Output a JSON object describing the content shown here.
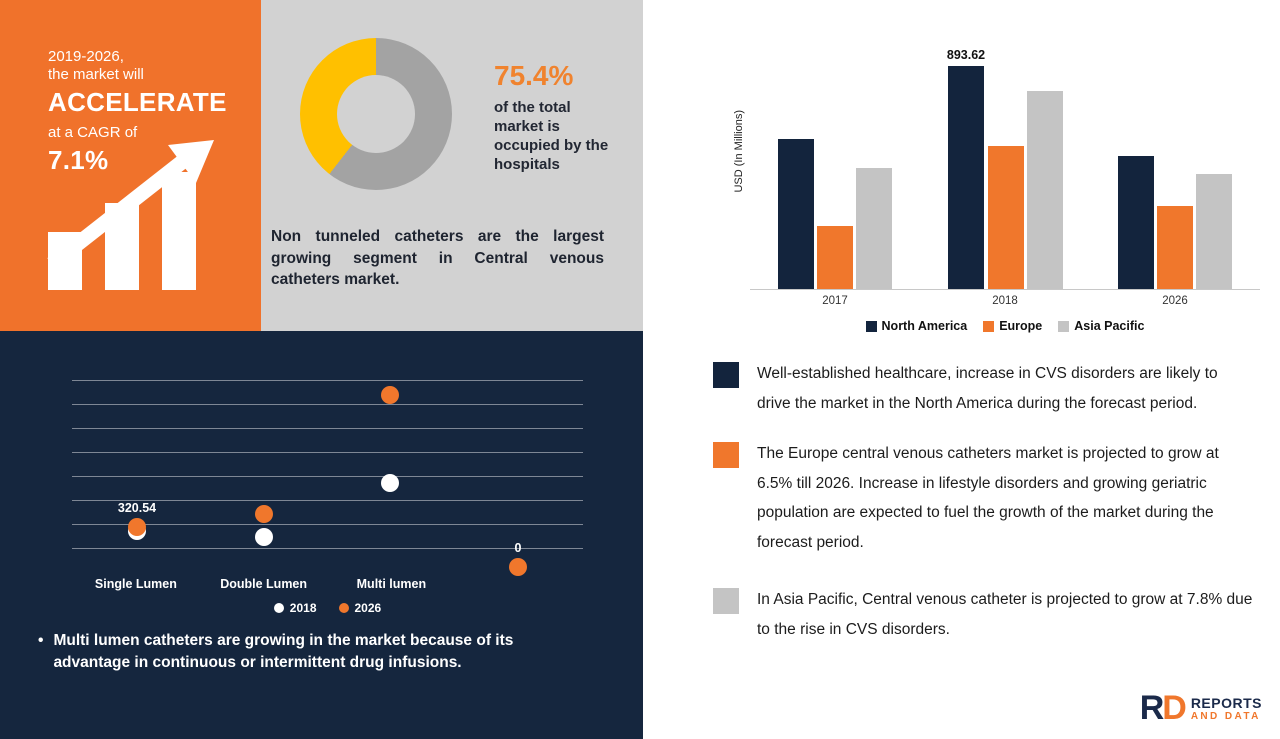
{
  "accelerate_panel": {
    "period": "2019-2026,",
    "line2": "the market will",
    "accelerate": "ACCELERATE",
    "line4": "at a CAGR of",
    "cagr": "7.1%"
  },
  "hospitals_panel": {
    "stat": "75.4%",
    "caption": "of the total market is occupied by the hospitals",
    "note": "Non tunneled catheters are the largest growing segment in Central venous catheters market."
  },
  "lumen_panel": {
    "note": "Multi lumen catheters are growing in the market because of its advantage in continuous or intermittent drug infusions."
  },
  "insights": [
    {
      "color": "#13243D",
      "text": "Well-established healthcare, increase in CVS disorders are likely to drive the market in the North America  during the forecast period."
    },
    {
      "color": "#F0772C",
      "text": "The Europe central venous catheters market is projected to grow at 6.5% till 2026. Increase in lifestyle disorders and growing geriatric population are expected to fuel the growth of the market during the forecast period."
    },
    {
      "color": "#C4C4C4",
      "text": "In Asia Pacific, Central venous catheter is projected to grow at 7.8% due to the rise in CVS disorders."
    }
  ],
  "logo": {
    "mark_r": "R",
    "mark_d": "D",
    "line1": "REPORTS",
    "line2": "AND DATA"
  },
  "chart_data": [
    {
      "type": "bar",
      "title": "",
      "ylabel": "USD (In Millions)",
      "categories": [
        "2017",
        "2018",
        "2026"
      ],
      "ylim": [
        0,
        900
      ],
      "grid": false,
      "legend_position": "bottom",
      "series": [
        {
          "name": "North America",
          "color": "#13243D",
          "values": [
            600,
            893.62,
            530
          ],
          "value_labels": [
            "",
            "893.62",
            ""
          ]
        },
        {
          "name": "Europe",
          "color": "#F0772C",
          "values": [
            250,
            570,
            330
          ],
          "value_labels": [
            "",
            "",
            ""
          ]
        },
        {
          "name": "Asia Pacific",
          "color": "#C4C4C4",
          "values": [
            485,
            790,
            460
          ],
          "value_labels": [
            "",
            "",
            ""
          ]
        }
      ]
    },
    {
      "type": "scatter",
      "categories": [
        "Single Lumen",
        "Double Lumen",
        "Multi lumen",
        ""
      ],
      "slot_fractions": [
        0.127,
        0.376,
        0.622,
        0.873
      ],
      "gridline_count": 8,
      "legend_position": "bottom",
      "series": [
        {
          "name": "2018",
          "color": "#FFFFFF",
          "values": [
            290,
            240,
            670,
            null
          ]
        },
        {
          "name": "2026",
          "color": "#F0772C",
          "values": [
            320.54,
            425,
            1380,
            0
          ]
        }
      ],
      "point_labels": [
        {
          "slot": 0,
          "text": "320.54"
        },
        {
          "slot": 3,
          "text": "0"
        }
      ]
    },
    {
      "type": "pie",
      "donut": true,
      "slices": [
        {
          "label": "highlighted",
          "pct": 39.5,
          "color": "#FFC000"
        },
        {
          "label": "remainder",
          "pct": 60.5,
          "color": "#A3A3A3"
        }
      ]
    }
  ]
}
